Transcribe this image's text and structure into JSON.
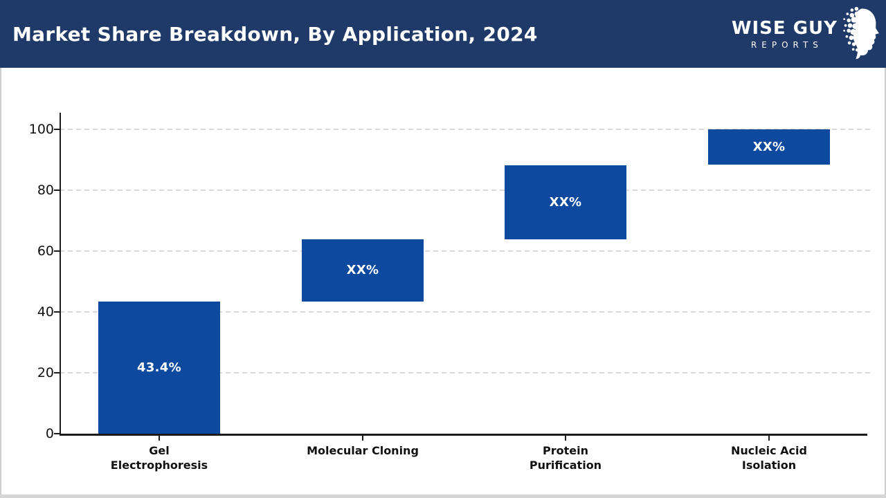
{
  "header": {
    "title": "Market Share Breakdown, By Application, 2024",
    "logo": {
      "wordmark": "WISE GUY",
      "subtext": "REPORTS"
    }
  },
  "watermark": {
    "wordmark": "WISE GUY",
    "subtext": "REPORTS"
  },
  "colors": {
    "header_bg": "#1f3a68",
    "bar": "#0d4a9f",
    "bar_label": "#ffffff",
    "grid": "#d9d9d9",
    "axis": "#1a1a1a",
    "tick_label": "#111111",
    "watermark": "#f1f1f3",
    "border": "#cfcfcf"
  },
  "chart_data": {
    "type": "bar",
    "subtype": "waterfall",
    "title": "Market Share Breakdown, By Application, 2024",
    "categories": [
      "Gel Electrophoresis",
      "Molecular Cloning",
      "Protein Purification",
      "Nucleic Acid Isolation"
    ],
    "category_label_lines": [
      [
        "Gel",
        "Electrophoresis"
      ],
      [
        "Molecular Cloning"
      ],
      [
        "Protein",
        "Purification"
      ],
      [
        "Nucleic Acid",
        "Isolation"
      ]
    ],
    "segments": [
      {
        "category": "Gel Electrophoresis",
        "start": 0,
        "end": 43.4,
        "label": "43.4%"
      },
      {
        "category": "Molecular Cloning",
        "start": 43.4,
        "end": 63.9,
        "label": "XX%"
      },
      {
        "category": "Protein Purification",
        "start": 63.9,
        "end": 88.2,
        "label": "XX%"
      },
      {
        "category": "Nucleic Acid Isolation",
        "start": 88.4,
        "end": 100,
        "label": "XX%"
      }
    ],
    "yticks": [
      0,
      20,
      40,
      60,
      80,
      100
    ],
    "ylim": [
      0,
      105
    ],
    "xlabel": "",
    "ylabel": "",
    "grid": "horizontal-dashed",
    "legend": "none"
  }
}
